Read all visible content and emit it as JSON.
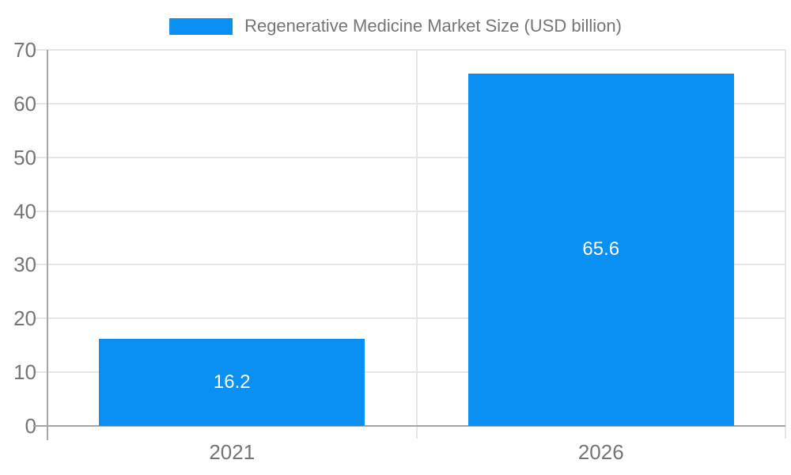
{
  "legend": {
    "label": "Regenerative Medicine Market Size (USD billion)",
    "swatch_color": "#0A8FF2"
  },
  "chart_data": {
    "type": "bar",
    "title": "Regenerative Medicine Market Size (USD billion)",
    "categories": [
      "2021",
      "2026"
    ],
    "series": [
      {
        "name": "Regenerative Medicine Market Size (USD billion)",
        "values": [
          16.2,
          65.6
        ]
      }
    ],
    "values": [
      16.2,
      65.6
    ],
    "value_labels": [
      "16.2",
      "65.6"
    ],
    "xlabel": "",
    "ylabel": "",
    "ylim": [
      0,
      70
    ],
    "yticks": [
      0,
      10,
      20,
      30,
      40,
      50,
      60,
      70
    ],
    "grid": true,
    "legend_position": "top-center",
    "bar_width_fraction_of_category": 0.72,
    "colors": {
      "bar": "#0A8FF2",
      "value_label": "#FFFFFF",
      "axis_text": "#757575",
      "gridline": "#E6E6E6",
      "axis_line": "#A6A6A6",
      "background": "#FFFFFF"
    }
  }
}
